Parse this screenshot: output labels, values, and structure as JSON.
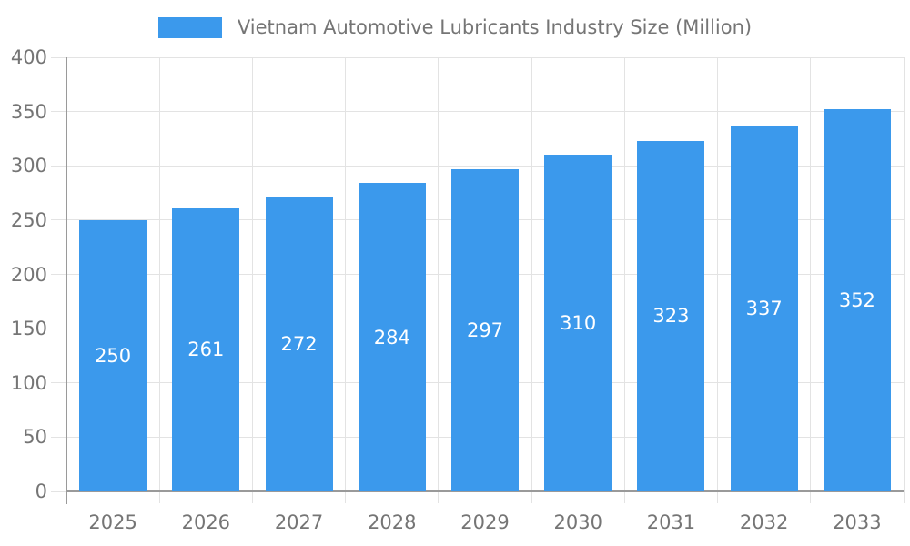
{
  "chart_data": {
    "type": "bar",
    "title": "Vietnam Automotive Lubricants Industry Size (Million)",
    "categories": [
      "2025",
      "2026",
      "2027",
      "2028",
      "2029",
      "2030",
      "2031",
      "2032",
      "2033"
    ],
    "values": [
      250,
      261,
      272,
      284,
      297,
      310,
      323,
      337,
      352
    ],
    "xlabel": "",
    "ylabel": "",
    "ylim": [
      0,
      400
    ],
    "y_ticks": [
      0,
      50,
      100,
      150,
      200,
      250,
      300,
      350,
      400
    ],
    "grid": true,
    "legend_position": "top-center",
    "bar_color": "#3B99EC",
    "bar_label_color": "#FFFFFF",
    "gridline_color": "#E3E3E3",
    "axis_color": "#9A9A9A",
    "text_color": "#757575",
    "background_color": "#FFFFFF"
  }
}
